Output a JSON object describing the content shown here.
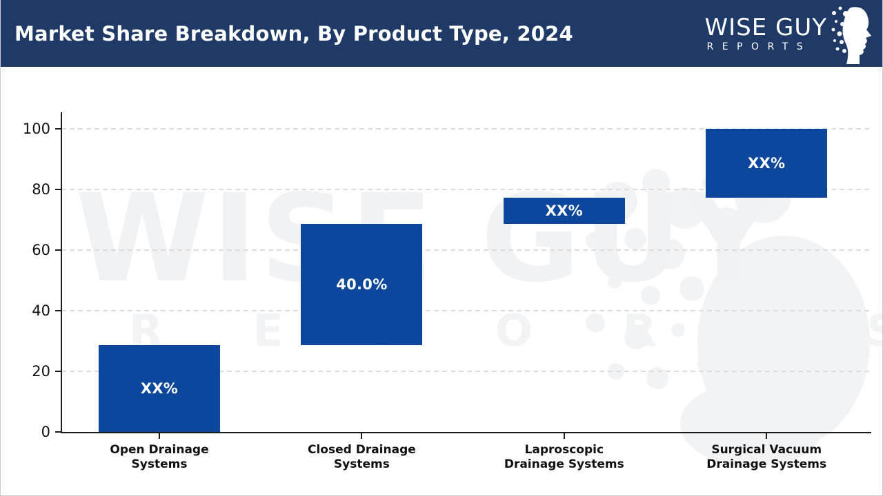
{
  "header": {
    "title": "Market Share Breakdown, By Product Type, 2024",
    "logo": {
      "line1": "WISE GUY",
      "line2": "REPORTS"
    }
  },
  "watermark": {
    "line1": "WISE GUY",
    "line2": "R E P O R T S"
  },
  "chart_data": {
    "type": "bar",
    "subtype": "waterfall",
    "title": "Market Share Breakdown, By Product Type, 2024",
    "categories": [
      "Open Drainage Systems",
      "Closed Drainage Systems",
      "Laproscopic Drainage Systems",
      "Surgical Vacuum Drainage Systems"
    ],
    "category_lines": [
      [
        "Open Drainage",
        "Systems"
      ],
      [
        "Closed Drainage",
        "Systems"
      ],
      [
        "Laproscopic",
        "Drainage Systems"
      ],
      [
        "Surgical Vacuum",
        "Drainage Systems"
      ]
    ],
    "segments": [
      {
        "start": 0,
        "end": 28.6,
        "label": "XX%"
      },
      {
        "start": 28.6,
        "end": 68.6,
        "label": "40.0%"
      },
      {
        "start": 68.6,
        "end": 77.2,
        "label": "XX%"
      },
      {
        "start": 77.2,
        "end": 100,
        "label": "XX%"
      }
    ],
    "xlabel": "",
    "ylabel": "",
    "yticks": [
      0,
      20,
      40,
      60,
      80,
      100
    ],
    "ylim": [
      0,
      105
    ],
    "grid": "horizontal-dashed",
    "legend": "none"
  },
  "colors": {
    "header_bg": "#1f3a66",
    "bar": "#0c479c",
    "grid": "#dcdcdc",
    "axis": "#1a1a1a",
    "tick_text": "#111111",
    "bar_label_text": "#ffffff",
    "watermark": "#f2f3f5"
  }
}
